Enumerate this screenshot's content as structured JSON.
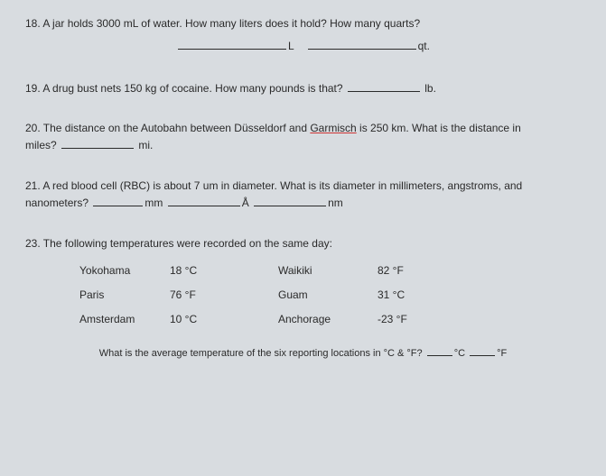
{
  "q18": {
    "text": "18. A jar holds 3000 mL of water. How many liters does it hold? How many quarts?",
    "unit1": "L",
    "unit2": "qt."
  },
  "q19": {
    "text": "19. A drug bust nets 150 kg of cocaine.  How many pounds is that?",
    "unit": "lb."
  },
  "q20": {
    "text_a": "20. The distance on the Autobahn between Düsseldorf and ",
    "garmisch": "Garmisch",
    "text_b": " is 250 km. What is the distance in",
    "line2": "miles?",
    "unit": "mi."
  },
  "q21": {
    "text": "21. A red blood cell (RBC) is about 7 um in diameter.  What is its diameter in millimeters, angstroms, and",
    "line2": "nanometers?",
    "unit1": "mm",
    "unit2": "Å",
    "unit3": "nm"
  },
  "q23": {
    "text": "23. The following temperatures were recorded on the same day:",
    "rows": [
      {
        "city1": "Yokohama",
        "val1": "18 °C",
        "city2": "Waikiki",
        "val2": "82 °F"
      },
      {
        "city1": "Paris",
        "val1": "76 °F",
        "city2": "Guam",
        "val2": "31 °C"
      },
      {
        "city1": "Amsterdam",
        "val1": "10 °C",
        "city2": "Anchorage",
        "val2": "-23 °F"
      }
    ],
    "final": "What is the average temperature of the six reporting locations in °C & °F?",
    "final_u1": "°C",
    "final_u2": "°F"
  }
}
